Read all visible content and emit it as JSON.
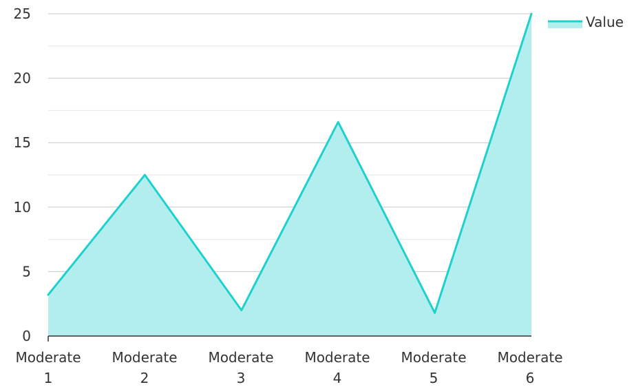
{
  "chart_data": {
    "type": "area",
    "title": "",
    "xlabel": "",
    "ylabel": "",
    "categories": [
      [
        "Moderate",
        "1"
      ],
      [
        "Moderate",
        "2"
      ],
      [
        "Moderate",
        "3"
      ],
      [
        "Moderate",
        "4"
      ],
      [
        "Moderate",
        "5"
      ],
      [
        "Moderate",
        "6"
      ]
    ],
    "series": [
      {
        "name": "Value",
        "values": [
          3.2,
          12.5,
          2.0,
          16.6,
          1.8,
          25.0
        ]
      }
    ],
    "ylim": [
      0,
      25
    ],
    "yticks": [
      "0",
      "5",
      "10",
      "15",
      "20",
      "25"
    ],
    "grid": true,
    "legend": "top-right",
    "colors": {
      "line": "#1fd0cd",
      "fill": "#b3eeee",
      "grid_major": "#c8c8c8",
      "grid_minor": "#e6e6e6",
      "axis": "#333333"
    }
  }
}
